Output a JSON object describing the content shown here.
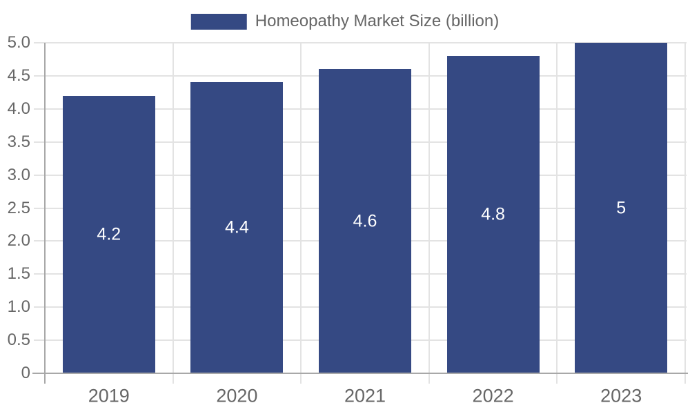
{
  "chart_data": {
    "type": "bar",
    "title": "Homeopathy Market Size (billion)",
    "legend_label": "Homeopathy Market Size (billion)",
    "legend_position": "top",
    "categories": [
      "2019",
      "2020",
      "2021",
      "2022",
      "2023"
    ],
    "values": [
      4.2,
      4.4,
      4.6,
      4.8,
      5
    ],
    "bar_labels": [
      "4.2",
      "4.4",
      "4.6",
      "4.8",
      "5"
    ],
    "xlabel": "",
    "ylabel": "",
    "ylim": [
      0,
      5
    ],
    "ytick_step": 0.5,
    "ytick_labels": [
      "0",
      "0.5",
      "1.0",
      "1.5",
      "2.0",
      "2.5",
      "3.0",
      "3.5",
      "4.0",
      "4.5",
      "5.0"
    ],
    "grid": true,
    "colors": {
      "bar": "#354983",
      "grid": "#e3e3e3",
      "axis": "#a8a8a8",
      "tick_text": "#666666",
      "bar_label_text": "#ffffff",
      "background": "#ffffff"
    }
  }
}
